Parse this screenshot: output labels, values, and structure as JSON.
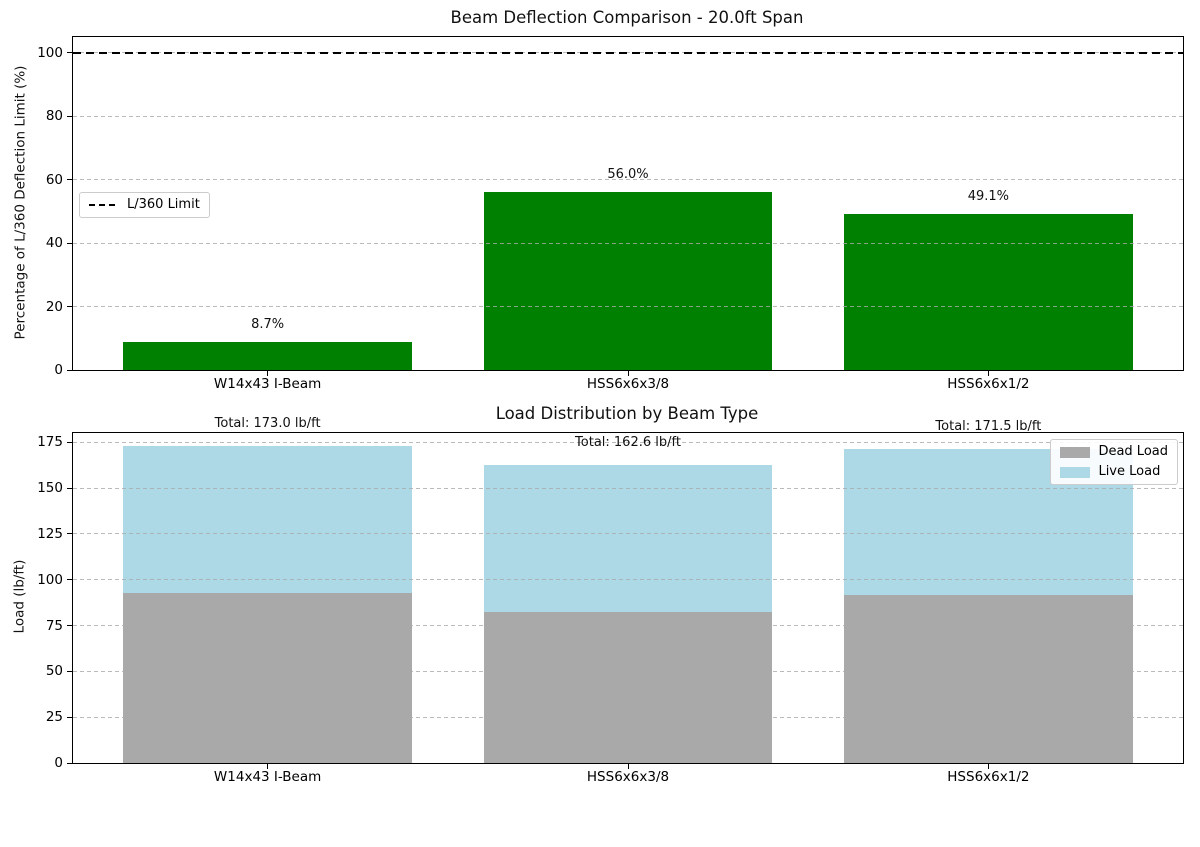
{
  "figure": {
    "background": "#ffffff"
  },
  "chart_data": [
    {
      "type": "bar",
      "title": "Beam Deflection Comparison - 20.0ft Span",
      "ylabel": "Percentage of L/360 Deflection Limit (%)",
      "xlabel": "",
      "categories": [
        "W14x43 I-Beam",
        "HSS6x6x3/8",
        "HSS6x6x1/2"
      ],
      "values": [
        8.7,
        56.0,
        49.1
      ],
      "bar_labels": [
        "8.7%",
        "56.0%",
        "49.1%"
      ],
      "bar_color": "#008000",
      "yticks": [
        0,
        20,
        40,
        60,
        80,
        100
      ],
      "ylim": [
        0,
        105
      ],
      "grid": "dashed-horizontal",
      "reference_line": {
        "value": 100,
        "label": "L/360 Limit",
        "color": "#000000",
        "style": "dashed"
      },
      "legend": {
        "position": "center-left",
        "entries": [
          {
            "label": "L/360 Limit",
            "marker": "dashed-line",
            "color": "#000000"
          }
        ]
      }
    },
    {
      "type": "stacked-bar",
      "title": "Load Distribution by Beam Type",
      "ylabel": "Load (lb/ft)",
      "xlabel": "",
      "categories": [
        "W14x43 I-Beam",
        "HSS6x6x3/8",
        "HSS6x6x1/2"
      ],
      "series": [
        {
          "name": "Dead Load",
          "color": "#a9a9a9",
          "values": [
            93.0,
            82.6,
            91.5
          ]
        },
        {
          "name": "Live Load",
          "color": "#add8e6",
          "values": [
            80.0,
            80.0,
            80.0
          ]
        }
      ],
      "totals": [
        173.0,
        162.6,
        171.5
      ],
      "total_labels": [
        "Total: 173.0 lb/ft",
        "Total: 162.6 lb/ft",
        "Total: 171.5 lb/ft"
      ],
      "yticks": [
        0,
        25,
        50,
        75,
        100,
        125,
        150,
        175
      ],
      "ylim": [
        0,
        180
      ],
      "grid": "dashed-horizontal",
      "legend": {
        "position": "top-right",
        "entries": [
          {
            "label": "Dead Load",
            "marker": "patch",
            "color": "#a9a9a9"
          },
          {
            "label": "Live Load",
            "marker": "patch",
            "color": "#add8e6"
          }
        ]
      }
    }
  ]
}
